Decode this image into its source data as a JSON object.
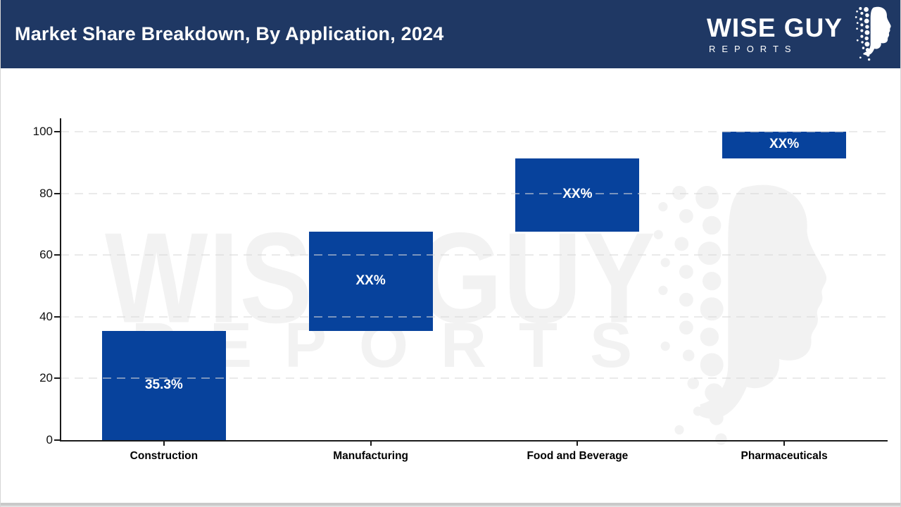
{
  "header": {
    "title": "Market Share Breakdown, By Application, 2024",
    "logo": {
      "line1": "WISE GUY",
      "line2": "REPORTS"
    }
  },
  "watermark": {
    "line1": "WISE GUY",
    "line2": "REPORTS"
  },
  "colors": {
    "header_bg": "#1f3864",
    "bar": "#07429c",
    "watermark": "#f2f2f2",
    "axis": "#1a1a1a"
  },
  "chart_data": {
    "type": "bar",
    "subtype": "waterfall-breakdown",
    "title": "Market Share Breakdown, By Application, 2024",
    "categories": [
      "Construction",
      "Manufacturing",
      "Food and Beverage",
      "Pharmaceuticals"
    ],
    "segments": [
      {
        "category": "Construction",
        "start": 0,
        "end": 35.3,
        "label": "35.3%"
      },
      {
        "category": "Manufacturing",
        "start": 35.3,
        "end": 67.6,
        "label": "XX%"
      },
      {
        "category": "Food and Beverage",
        "start": 67.6,
        "end": 91.3,
        "label": "XX%"
      },
      {
        "category": "Pharmaceuticals",
        "start": 91.3,
        "end": 100,
        "label": "XX%"
      }
    ],
    "y_ticks": [
      0,
      20,
      40,
      60,
      80,
      100
    ],
    "ylim": [
      0,
      100
    ],
    "xlabel": "",
    "ylabel": "",
    "grid": "dashed-horizontal",
    "legend": "none",
    "bar_color": "#07429c"
  }
}
